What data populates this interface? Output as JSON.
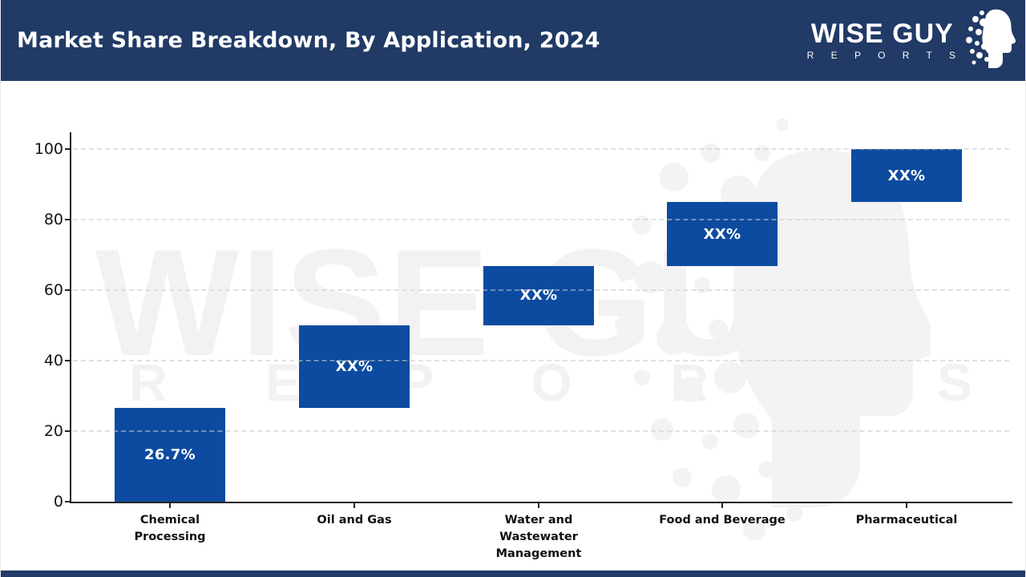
{
  "header": {
    "title": "Market Share Breakdown, By Application, 2024",
    "logo": {
      "line1": "WISE GUY",
      "line2": "R E P O R T S"
    }
  },
  "watermark": {
    "line1": "WISE GUY",
    "line2": "R E P O R T S"
  },
  "colors": {
    "header_background": "#213a66",
    "bar_blue": "#0c4ba0",
    "axis": "#262626",
    "gridline": "#e3e3e3",
    "watermark_gray": "#f2f2f4",
    "bar_label_text": "#ffffff"
  },
  "chart_data": {
    "type": "bar",
    "subtype": "waterfall-floating-bars",
    "title": "Market Share Breakdown, By Application, 2024",
    "categories": [
      "Chemical\nProcessing",
      "Oil and Gas",
      "Water and\nWastewater\nManagement",
      "Food and Beverage",
      "Pharmaceutical"
    ],
    "series": [
      {
        "name": "Market Share (%)",
        "segments": [
          {
            "category": "Chemical Processing",
            "start": 0,
            "end": 26.7,
            "label": "26.7%"
          },
          {
            "category": "Oil and Gas",
            "start": 26.7,
            "end": 50.1,
            "label": "XX%"
          },
          {
            "category": "Water and Wastewater Management",
            "start": 50.1,
            "end": 66.8,
            "label": "XX%"
          },
          {
            "category": "Food and Beverage",
            "start": 66.8,
            "end": 85.0,
            "label": "XX%"
          },
          {
            "category": "Pharmaceutical",
            "start": 85.0,
            "end": 100.0,
            "label": "XX%"
          }
        ]
      }
    ],
    "xlabel": "",
    "ylabel": "",
    "ylim": [
      0,
      105
    ],
    "yticks": [
      0,
      20,
      40,
      60,
      80,
      100
    ],
    "grid": "horizontal dashed",
    "legend": "none",
    "bar_color": "#0c4ba0",
    "label_color": "#ffffff"
  }
}
